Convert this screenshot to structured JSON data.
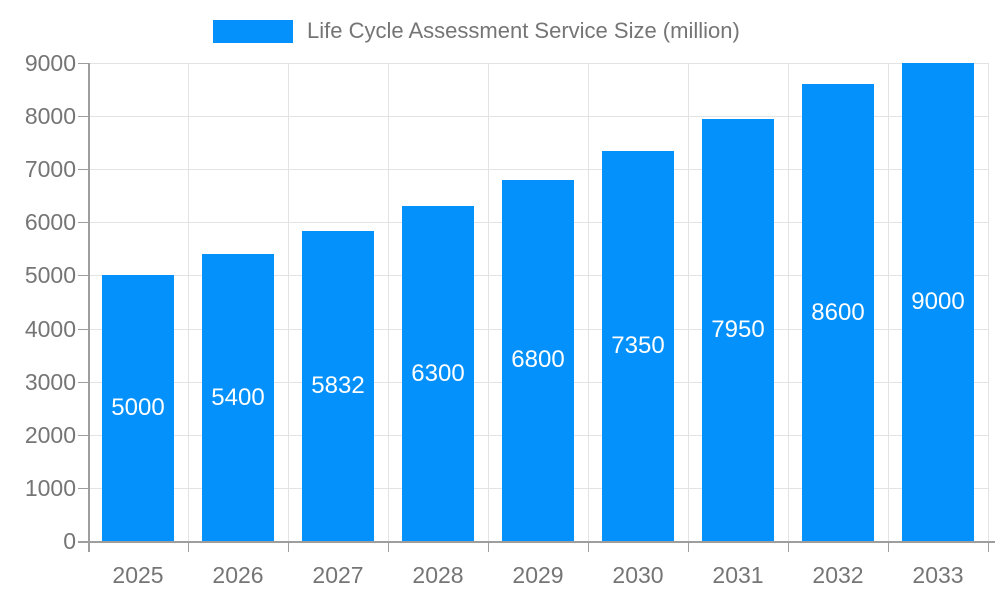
{
  "chart_data": {
    "type": "bar",
    "title": "Life Cycle Assessment Service Size (million)",
    "legend": [
      "Life Cycle Assessment Service Size (million)"
    ],
    "legend_position": "top",
    "categories": [
      "2025",
      "2026",
      "2027",
      "2028",
      "2029",
      "2030",
      "2031",
      "2032",
      "2033"
    ],
    "values": [
      5000,
      5400,
      5832,
      6300,
      6800,
      7350,
      7950,
      8600,
      9000
    ],
    "data_labels": [
      "5000",
      "5400",
      "5832",
      "6300",
      "6800",
      "7350",
      "7950",
      "8600",
      "9000"
    ],
    "xlabel": "",
    "ylabel": "",
    "ylim": [
      0,
      9000
    ],
    "ytick_step": 1000,
    "yticks": [
      0,
      1000,
      2000,
      3000,
      4000,
      5000,
      6000,
      7000,
      8000,
      9000
    ],
    "grid": true,
    "colors": {
      "bar": "#0591FC",
      "bar_value_text": "#FFFFFF",
      "axis_text": "#757575",
      "grid_line": "#E3E3E3",
      "axis_line": "#9E9E9E",
      "background": "#FFFFFF"
    }
  }
}
